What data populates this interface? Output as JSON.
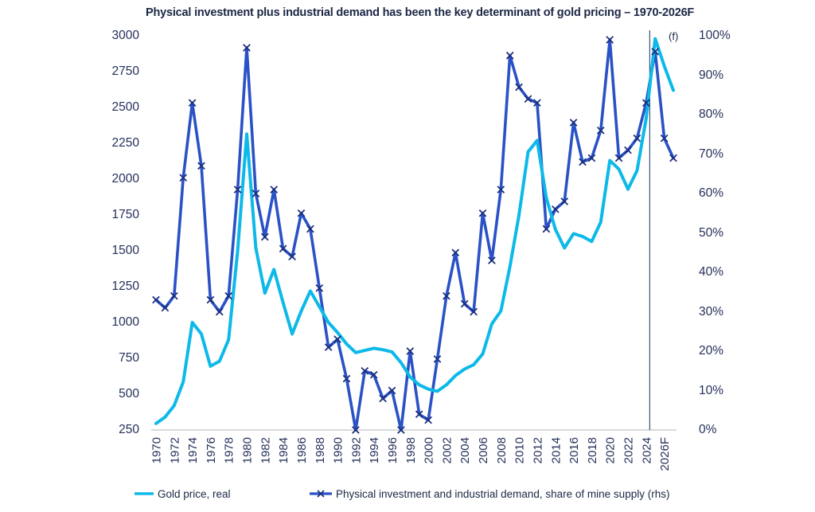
{
  "title": "Physical investment plus industrial demand has been the key determinant of gold pricing – 1970-2026F",
  "forecast_flag": "(f)",
  "colors": {
    "gold_line": "#0cb9e8",
    "share_line": "#2a52c6",
    "share_marker": "#1b2f7e",
    "forecast_divider": "#33517e",
    "axis_line": "#d8dade",
    "text": "#1b2744"
  },
  "legend": {
    "items": [
      {
        "label": "Gold price, real"
      },
      {
        "label": "Physical investment and industrial demand, share of mine supply (rhs)"
      }
    ]
  },
  "chart_data": {
    "type": "line",
    "title": "Physical investment plus industrial demand has been the key determinant of gold pricing – 1970-2026F",
    "grid": false,
    "legend_position": "bottom",
    "years": [
      1970,
      1971,
      1972,
      1973,
      1974,
      1975,
      1976,
      1977,
      1978,
      1979,
      1980,
      1981,
      1982,
      1983,
      1984,
      1985,
      1986,
      1987,
      1988,
      1989,
      1990,
      1991,
      1992,
      1993,
      1994,
      1995,
      1996,
      1997,
      1998,
      1999,
      2000,
      2001,
      2002,
      2003,
      2004,
      2005,
      2006,
      2007,
      2008,
      2009,
      2010,
      2011,
      2012,
      2013,
      2014,
      2015,
      2016,
      2017,
      2018,
      2019,
      2020,
      2021,
      2022,
      2023,
      2024,
      2025,
      2026,
      2027
    ],
    "x_tick_labels": [
      "1970",
      "1972",
      "1974",
      "1976",
      "1978",
      "1980",
      "1982",
      "1984",
      "1986",
      "1988",
      "1990",
      "1992",
      "1994",
      "1996",
      "1998",
      "2000",
      "2002",
      "2004",
      "2006",
      "2008",
      "2010",
      "2012",
      "2014",
      "2016",
      "2018",
      "2020",
      "2022",
      "2024",
      "2026F"
    ],
    "series": [
      {
        "name": "Gold price, real",
        "axis": "left",
        "color": "#0cb9e8",
        "marker": "none",
        "values": [
          295,
          340,
          420,
          585,
          1000,
          920,
          695,
          730,
          880,
          1500,
          2315,
          1520,
          1205,
          1370,
          1140,
          920,
          1080,
          1220,
          1110,
          1000,
          930,
          850,
          790,
          805,
          820,
          810,
          795,
          720,
          620,
          565,
          535,
          520,
          565,
          630,
          675,
          705,
          780,
          990,
          1080,
          1390,
          1750,
          2190,
          2270,
          1870,
          1650,
          1520,
          1620,
          1600,
          1565,
          1700,
          2130,
          2070,
          1930,
          2060,
          2420,
          2980,
          2790,
          2620
        ]
      },
      {
        "name": "Physical investment and industrial demand, share of mine supply (rhs)",
        "axis": "right",
        "color": "#2a52c6",
        "marker": "x",
        "marker_color": "#1b2f7e",
        "values": [
          33,
          31,
          34,
          64,
          83,
          67,
          33,
          30,
          34,
          61,
          97,
          60,
          49,
          61,
          46,
          44,
          55,
          51,
          36,
          21,
          23,
          13,
          0,
          15,
          14,
          8,
          10,
          0,
          20,
          4,
          2.5,
          18,
          34,
          45,
          32,
          30,
          55,
          43,
          61,
          95,
          87,
          84,
          83,
          51,
          56,
          58,
          78,
          68,
          69,
          76,
          99,
          69,
          71,
          74,
          83,
          96,
          74,
          69
        ]
      }
    ],
    "left_axis": {
      "min": 250,
      "max": 3000,
      "step": 250,
      "ticks": [
        "250",
        "500",
        "750",
        "1000",
        "1250",
        "1500",
        "1750",
        "2000",
        "2250",
        "2500",
        "2750",
        "3000"
      ]
    },
    "right_axis": {
      "min": 0,
      "max": 100,
      "step": 10,
      "ticks": [
        "0%",
        "10%",
        "20%",
        "30%",
        "40%",
        "50%",
        "60%",
        "70%",
        "80%",
        "90%",
        "100%"
      ]
    },
    "forecast_divider": {
      "x_year": 2024.4,
      "label": "(f)"
    }
  }
}
